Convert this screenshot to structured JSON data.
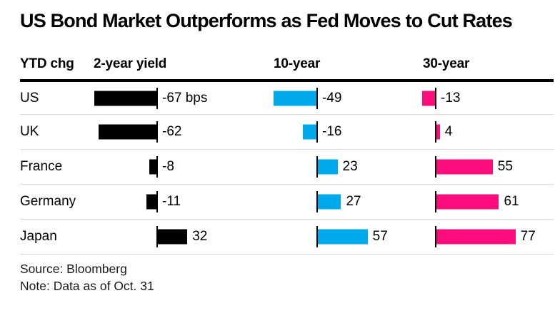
{
  "title": "US Bond Market Outperforms as Fed Moves to Cut Rates",
  "header": {
    "corner_label": "YTD chg"
  },
  "chart_data": {
    "type": "bar",
    "orientation": "horizontal",
    "unit": "bps",
    "title": "US Bond Market Outperforms as Fed Moves to Cut Rates",
    "categories": [
      "US",
      "UK",
      "France",
      "Germany",
      "Japan"
    ],
    "series": [
      {
        "name": "2-year yield",
        "color": "#000000",
        "values": [
          -67,
          -62,
          -8,
          -11,
          32
        ],
        "value_labels": [
          "-67 bps",
          "-62",
          "-8",
          "-11",
          "32"
        ]
      },
      {
        "name": "10-year",
        "color": "#00A8EC",
        "values": [
          -49,
          -16,
          23,
          27,
          57
        ],
        "value_labels": [
          "-49",
          "-16",
          "23",
          "27",
          "57"
        ]
      },
      {
        "name": "30-year",
        "color": "#FC0D7E",
        "values": [
          -13,
          4,
          55,
          61,
          77
        ],
        "value_labels": [
          "-13",
          "4",
          "55",
          "61",
          "77"
        ]
      }
    ],
    "zero_baseline_ticks": true,
    "value_labels_shown": true,
    "legend_position": "column-headers",
    "grid": "row-separators-only",
    "xlabel": "",
    "ylabel": ""
  },
  "footer": {
    "source": "Source: Bloomberg",
    "note": "Note: Data as of Oct. 31"
  }
}
